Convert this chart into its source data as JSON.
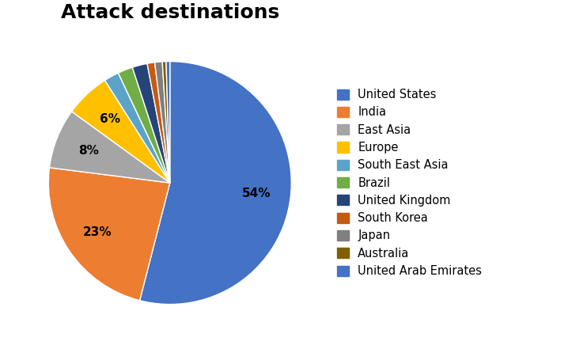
{
  "title": "Attack destinations",
  "labels": [
    "United States",
    "India",
    "East Asia",
    "Europe",
    "South East Asia",
    "Brazil",
    "United Kingdom",
    "South Korea",
    "Japan",
    "Australia",
    "United Arab Emirates"
  ],
  "values": [
    54,
    23,
    8,
    6,
    2,
    2,
    2,
    1,
    1,
    0.5,
    0.5
  ],
  "colors": [
    "#4472C4",
    "#ED7D31",
    "#A5A5A5",
    "#FFC000",
    "#5BA3C9",
    "#70AD47",
    "#264478",
    "#C55A11",
    "#7F7F7F",
    "#7F6000",
    "#4472C4"
  ],
  "autopct_labels": [
    "54%",
    "23%",
    "8%",
    "6%",
    "",
    "",
    "",
    "",
    "",
    "",
    ""
  ],
  "background_color": "#FFFFFF",
  "title_fontsize": 18,
  "legend_fontsize": 10.5
}
